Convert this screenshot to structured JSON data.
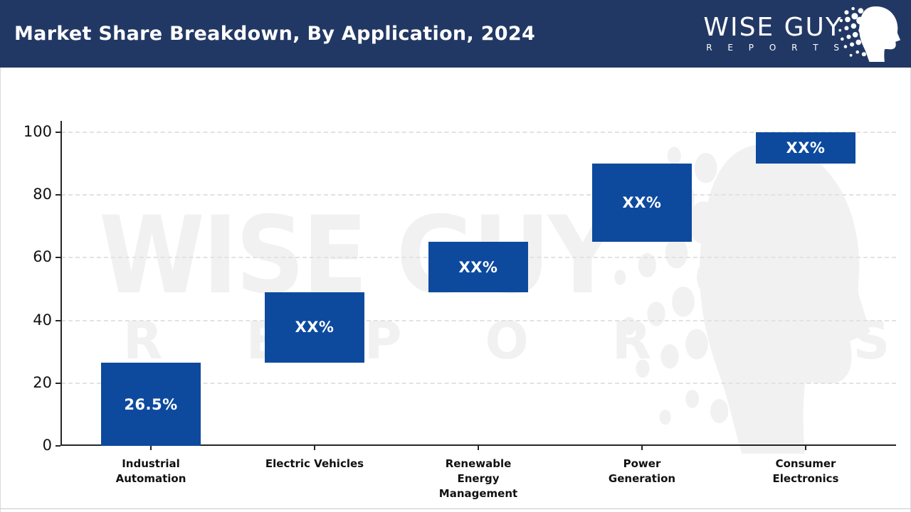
{
  "header": {
    "title": "Market Share Breakdown, By Application, 2024",
    "background_color": "#223864",
    "logo": {
      "wordmark": "WISE GUY",
      "subtext": "R E P O R T S",
      "head_icon": "dotted-head-profile"
    }
  },
  "watermark": {
    "line1": "WISE GUY",
    "line2": "R E P O R T S",
    "head_icon": "dotted-head-profile"
  },
  "chart_data": {
    "type": "bar",
    "subtype": "waterfall",
    "title": "Market Share Breakdown, By Application, 2024",
    "categories": [
      "Industrial Automation",
      "Electric Vehicles",
      "Renewable Energy Management",
      "Power Generation",
      "Consumer Electronics"
    ],
    "series": [
      {
        "name": "Market share (%)",
        "segments": [
          {
            "start": 0,
            "end": 26.5,
            "label": "26.5%"
          },
          {
            "start": 26.5,
            "end": 49,
            "label": "XX%"
          },
          {
            "start": 49,
            "end": 65,
            "label": "XX%"
          },
          {
            "start": 65,
            "end": 90,
            "label": "XX%"
          },
          {
            "start": 90,
            "end": 100,
            "label": "XX%"
          }
        ]
      }
    ],
    "xlabel": "",
    "ylabel": "",
    "ylim": [
      0,
      100
    ],
    "yticks": [
      0,
      20,
      40,
      60,
      80,
      100
    ],
    "grid": "horizontal-dashed",
    "legend": "none",
    "bar_color": "#0d4a9e",
    "bar_label_color": "#ffffff"
  }
}
